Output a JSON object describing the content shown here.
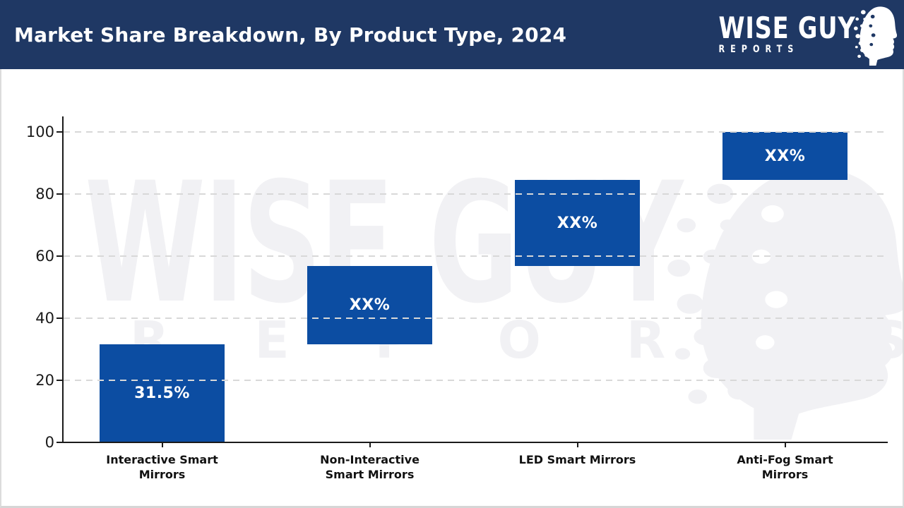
{
  "header": {
    "title": "Market Share Breakdown, By Product Type, 2024",
    "logo": {
      "line1": "WISE GUY",
      "line2": "REPORTS"
    }
  },
  "watermark": {
    "line1": "WISE GUY",
    "line2": "R E P O R T S"
  },
  "colors": {
    "header_bg": "#1f3864",
    "bar_blue": "#0c4da2",
    "watermark_gray": "#f1f1f4",
    "gridline_gray": "#d8d8d8"
  },
  "chart_data": {
    "type": "bar",
    "subtype": "waterfall",
    "title": "Market Share Breakdown, By Product Type, 2024",
    "xlabel": "",
    "ylabel": "",
    "ylim": [
      0,
      100
    ],
    "yticks": [
      0,
      20,
      40,
      60,
      80,
      100
    ],
    "grid": "horizontal-dashed",
    "legend": "none",
    "bar_color": "#0c4da2",
    "categories": [
      "Interactive Smart Mirrors",
      "Non-Interactive Smart Mirrors",
      "LED Smart Mirrors",
      "Anti-Fog Smart Mirrors"
    ],
    "segments": [
      {
        "category": "Interactive Smart Mirrors",
        "start": 0,
        "end": 31.5,
        "label": "31.5%"
      },
      {
        "category": "Non-Interactive Smart Mirrors",
        "start": 31.5,
        "end": 56.8,
        "label": "XX%"
      },
      {
        "category": "LED Smart Mirrors",
        "start": 56.8,
        "end": 84.5,
        "label": "XX%"
      },
      {
        "category": "Anti-Fog Smart Mirrors",
        "start": 84.5,
        "end": 100,
        "label": "XX%"
      }
    ]
  }
}
